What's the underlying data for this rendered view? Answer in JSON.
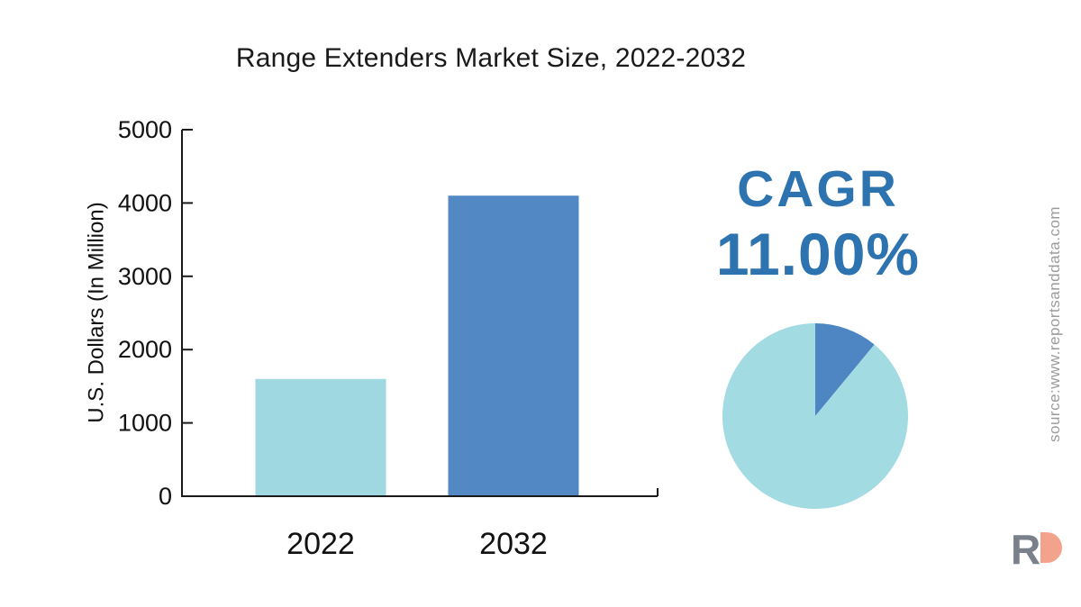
{
  "page": {
    "title": "Range Extenders Market Size, 2022-2032"
  },
  "chart_data": [
    {
      "type": "bar",
      "title": "Range Extenders Market Size, 2022-2032",
      "categories": [
        "2022",
        "2032"
      ],
      "values": [
        1600,
        4100
      ],
      "ylabel": "U.S. Dollars (In Million)",
      "xlabel": "",
      "ylim": [
        0,
        5000
      ],
      "yticks": [
        0,
        1000,
        2000,
        3000,
        4000,
        5000
      ],
      "bar_colors": [
        "#9fd8e0",
        "#5288c4"
      ],
      "axis_color": "#1a1a1a",
      "grid": false,
      "legend": null
    },
    {
      "type": "pie",
      "slices": [
        {
          "name": "cagr-share",
          "value": 11,
          "color": "#4e86c4"
        },
        {
          "name": "remainder",
          "value": 89,
          "color": "#a3dbe3"
        }
      ],
      "start_angle_deg": -90,
      "direction": "clockwise"
    }
  ],
  "cagr": {
    "label": "CAGR",
    "value": "11.00%",
    "color": "#2d73af"
  },
  "source_text": "source:www.reportsanddata.com",
  "logo": {
    "letter": "R",
    "d_icon": "half-disc-icon",
    "letter_color": "#79808a",
    "d_color": "#f3a38c"
  }
}
